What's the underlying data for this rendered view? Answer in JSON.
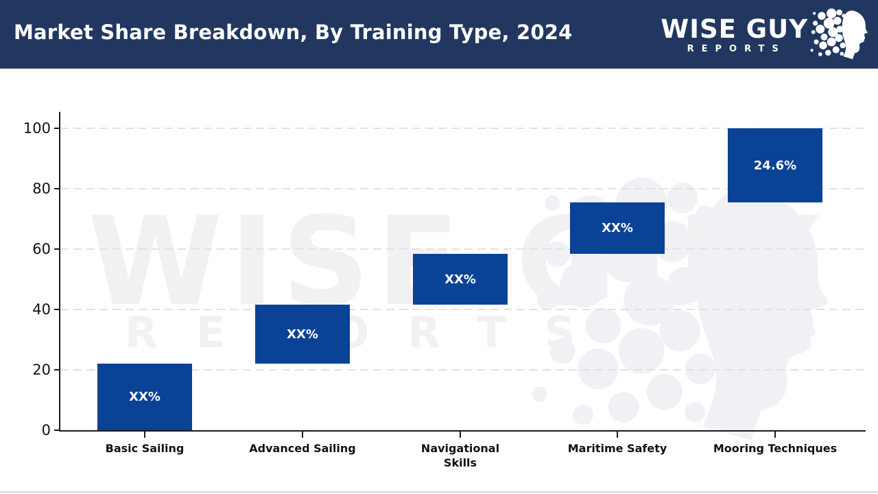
{
  "header": {
    "title": "Market Share Breakdown, By Training Type, 2024",
    "background_color": "#21375f",
    "logo": {
      "word": "WISE GUY",
      "sub": "REPORTS"
    }
  },
  "watermark": {
    "word": "WISE GUY",
    "sub": "REPORTS"
  },
  "chart_data": {
    "type": "bar",
    "subtype": "waterfall",
    "title": "Market Share Breakdown, By Training Type, 2024",
    "categories": [
      "Basic Sailing",
      "Advanced Sailing",
      "Navigational\nSkills",
      "Maritime Safety",
      "Mooring Techniques"
    ],
    "segments": [
      {
        "category": "Basic Sailing",
        "start": 0,
        "end": 22.0,
        "label": "XX%"
      },
      {
        "category": "Advanced Sailing",
        "start": 22.0,
        "end": 41.6,
        "label": "XX%"
      },
      {
        "category": "Navigational Skills",
        "start": 41.6,
        "end": 58.3,
        "label": "XX%"
      },
      {
        "category": "Maritime Safety",
        "start": 58.3,
        "end": 75.4,
        "label": "XX%"
      },
      {
        "category": "Mooring Techniques",
        "start": 75.4,
        "end": 100,
        "label": "24.6%"
      }
    ],
    "ylim": [
      0,
      105
    ],
    "yticks": [
      0,
      20,
      40,
      60,
      80,
      100
    ],
    "xlabel": "",
    "ylabel": "",
    "grid": "horizontal-dashed",
    "legend": "none",
    "bar_color": "#0a4296",
    "bar_label_color": "#ffffff",
    "axis_color": "#1a1a1a",
    "grid_color": "#e2e2e2"
  }
}
